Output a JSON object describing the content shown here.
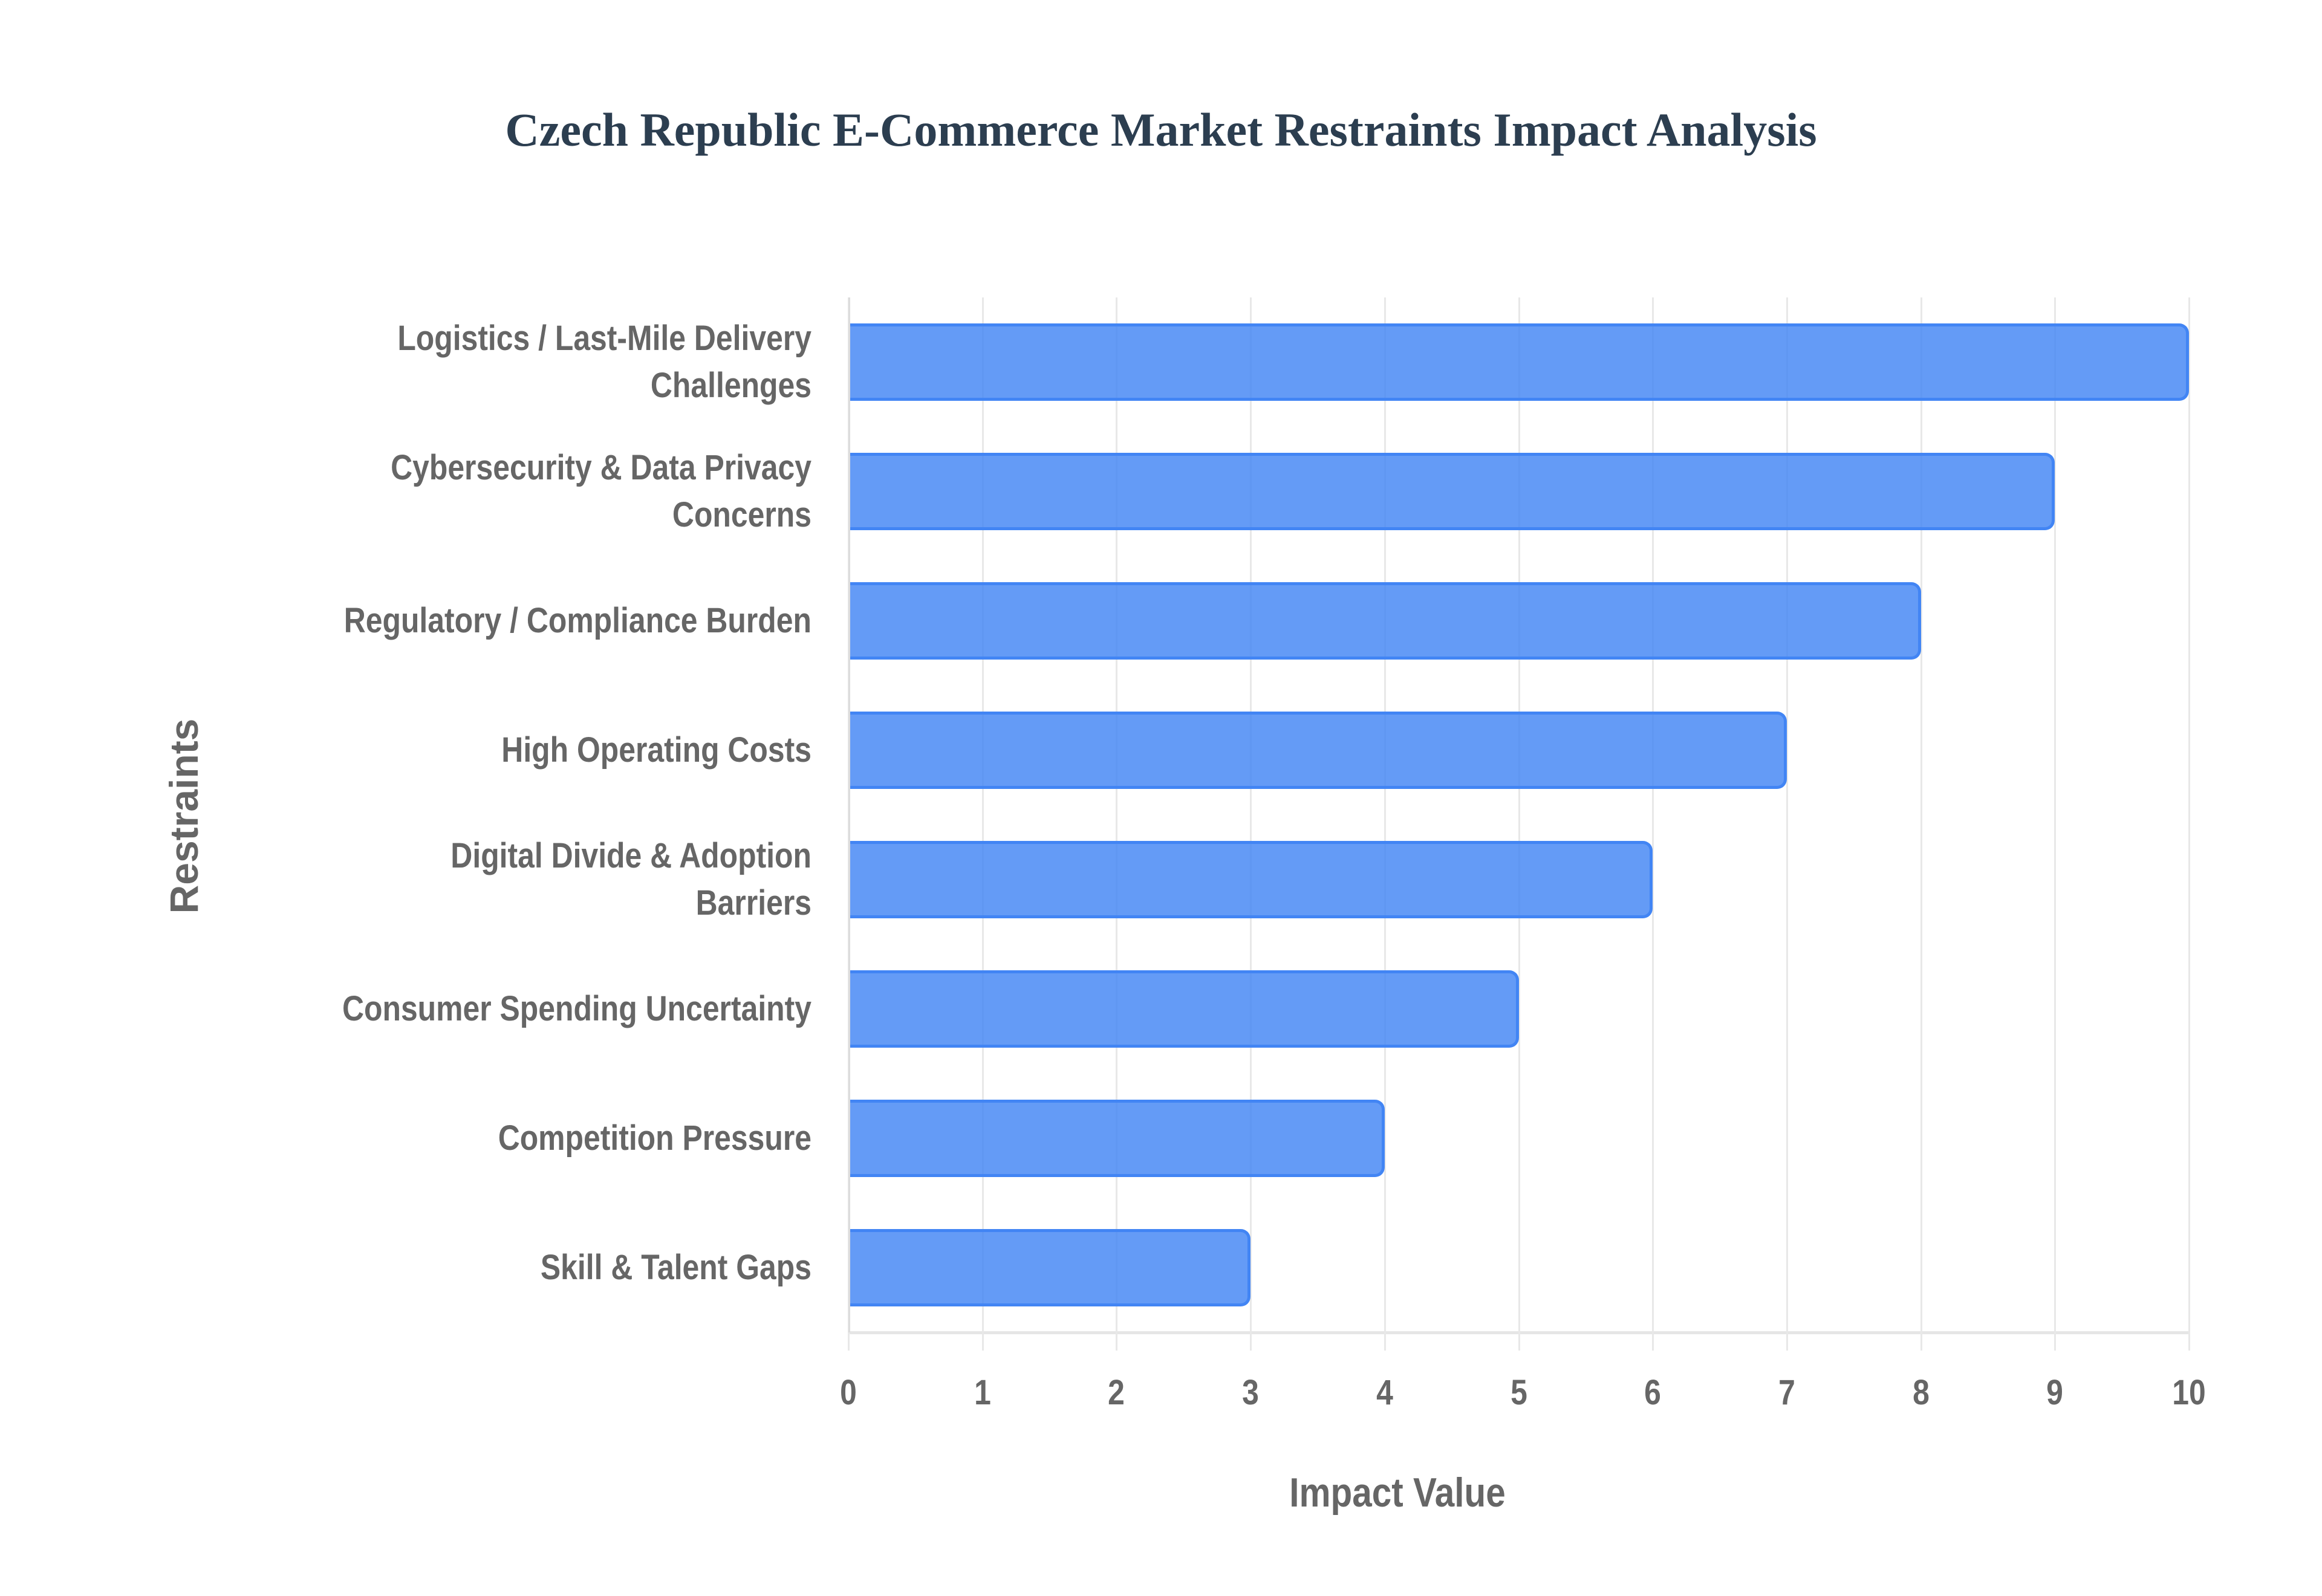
{
  "chart_data": {
    "type": "bar",
    "orientation": "horizontal",
    "title": "Czech Republic E-Commerce Market Restraints Impact Analysis",
    "xlabel": "Impact Value",
    "ylabel": "Restraints",
    "xlim": [
      0,
      10
    ],
    "x_ticks": [
      "0",
      "1",
      "2",
      "3",
      "4",
      "5",
      "6",
      "7",
      "8",
      "9",
      "10"
    ],
    "grid": true,
    "legend": "none",
    "bar_color": "#4285f4",
    "categories": [
      "Logistics / Last-Mile Delivery Challenges",
      "Cybersecurity & Data Privacy Concerns",
      "Regulatory / Compliance Burden",
      "High Operating Costs",
      "Digital Divide & Adoption Barriers",
      "Consumer Spending Uncertainty",
      "Competition Pressure",
      "Skill & Talent Gaps"
    ],
    "values": [
      10,
      9,
      8,
      7,
      6,
      5,
      4,
      3
    ]
  },
  "labels": {
    "title": "Czech Republic E-Commerce Market Restraints Impact Analysis",
    "xlabel": "Impact Value",
    "ylabel": "Restraints",
    "x_ticks": [
      "0",
      "1",
      "2",
      "3",
      "4",
      "5",
      "6",
      "7",
      "8",
      "9",
      "10"
    ],
    "y_categories": [
      [
        "Logistics / Last-Mile Delivery",
        "Challenges"
      ],
      [
        "Cybersecurity & Data Privacy",
        "Concerns"
      ],
      [
        "Regulatory / Compliance Burden"
      ],
      [
        "High Operating Costs"
      ],
      [
        "Digital Divide & Adoption",
        "Barriers"
      ],
      [
        "Consumer Spending Uncertainty"
      ],
      [
        "Competition Pressure"
      ],
      [
        "Skill & Talent Gaps"
      ]
    ]
  }
}
